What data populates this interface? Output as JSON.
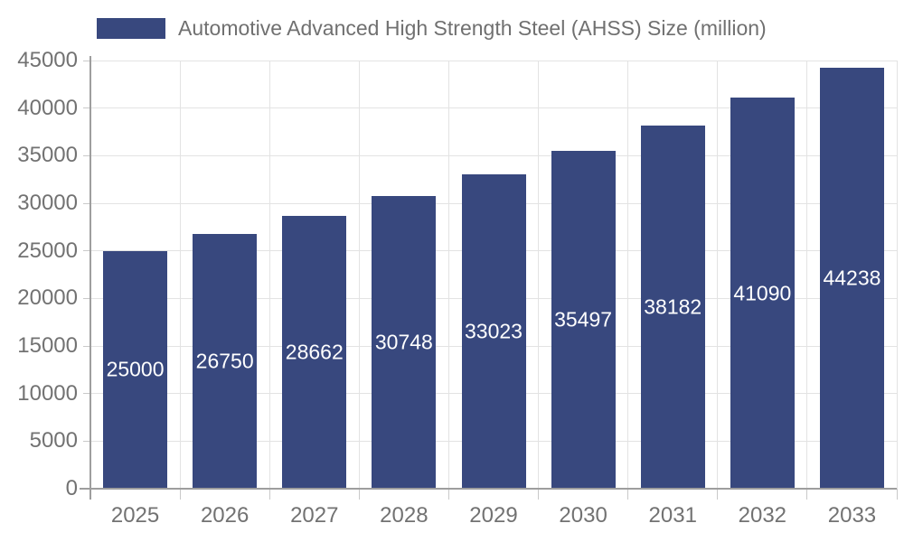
{
  "legend": {
    "label": "Automotive Advanced High Strength Steel (AHSS) Size (million)"
  },
  "colors": {
    "bar": "#38487e",
    "bar_label": "#ffffff",
    "gridline": "#e3e3e3",
    "axis": "#9e9e9e",
    "tick": "#c9c9c9",
    "axis_text": "#727272",
    "legend_text": "#707070",
    "background": "#ffffff"
  },
  "chart_data": {
    "type": "bar",
    "title": "Automotive Advanced High Strength Steel (AHSS) Size (million)",
    "categories": [
      "2025",
      "2026",
      "2027",
      "2028",
      "2029",
      "2030",
      "2031",
      "2032",
      "2033"
    ],
    "values": [
      25000,
      26750,
      28662,
      30748,
      33023,
      35497,
      38182,
      41090,
      44238
    ],
    "xlabel": "",
    "ylabel": "",
    "ylim": [
      0,
      45000
    ],
    "ytick_step": 5000,
    "ytick_labels": [
      "0",
      "5000",
      "10000",
      "15000",
      "20000",
      "25000",
      "30000",
      "35000",
      "40000",
      "45000"
    ],
    "grid": true,
    "legend_position": "top",
    "value_labels": "inside-center"
  }
}
